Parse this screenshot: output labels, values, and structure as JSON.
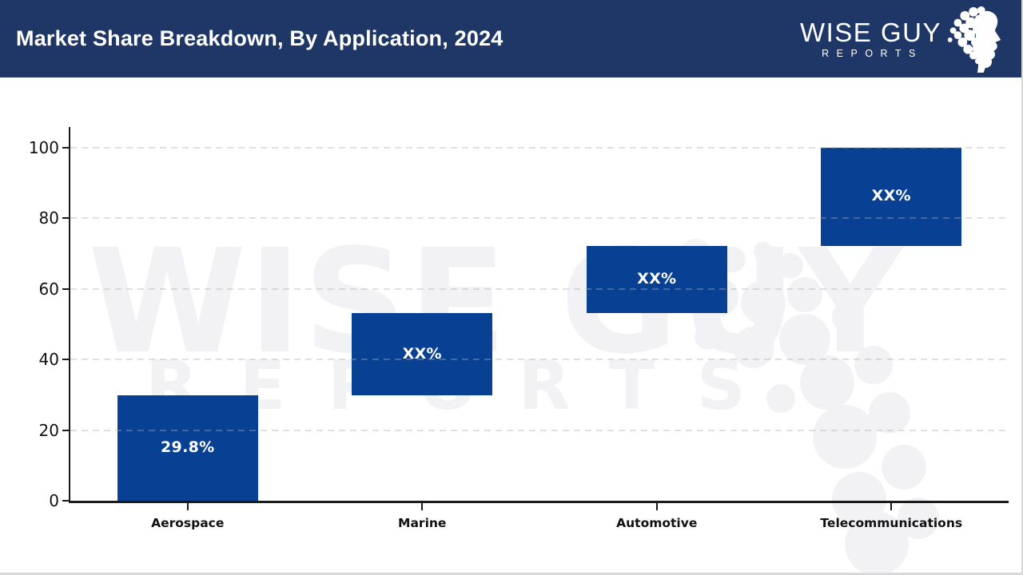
{
  "header": {
    "title": "Market Share Breakdown, By Application, 2024",
    "logo": {
      "line1": "WISE GUY",
      "line2": "REPORTS"
    }
  },
  "watermark": {
    "line1": "WISE GUY",
    "line2": "REPORTS"
  },
  "chart_data": {
    "type": "bar",
    "subtype": "waterfall-floating-bars",
    "title": "Market Share Breakdown, By Application, 2024",
    "xlabel": "",
    "ylabel": "",
    "categories": [
      "Aerospace",
      "Marine",
      "Automotive",
      "Telecommunications"
    ],
    "series": [
      {
        "name": "Aerospace",
        "start": 0,
        "end": 29.8,
        "label": "29.8%"
      },
      {
        "name": "Marine",
        "start": 29.8,
        "end": 53.2,
        "label": "XX%"
      },
      {
        "name": "Automotive",
        "start": 53.2,
        "end": 72.2,
        "label": "XX%"
      },
      {
        "name": "Telecommunications",
        "start": 72.2,
        "end": 100,
        "label": "XX%"
      }
    ],
    "yticks": [
      0,
      20,
      40,
      60,
      80,
      100
    ],
    "ylim": [
      0,
      104.5
    ],
    "grid": true,
    "grid_style": "dashed",
    "legend": "none",
    "bar_color": "#084094",
    "bar_label_color": "#ffffff"
  },
  "colors": {
    "header_bg": "#1f3766",
    "bar_blue": "#084094",
    "watermark_gray": "#f2f2f4",
    "axis_black": "#1a1a1a"
  }
}
